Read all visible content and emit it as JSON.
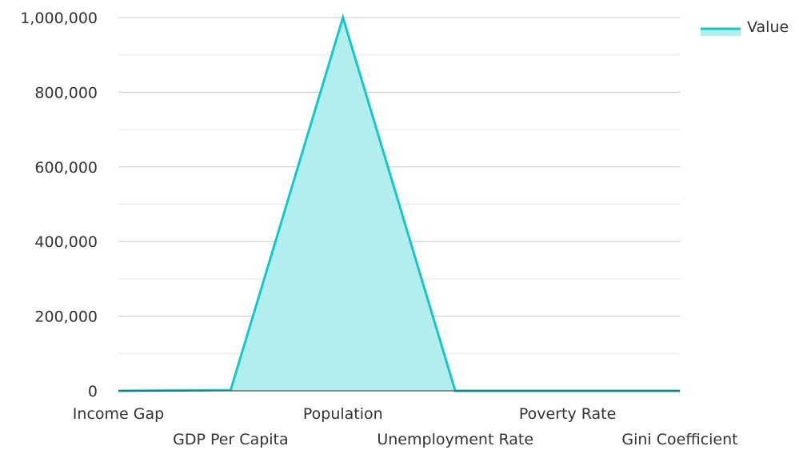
{
  "chart_data": {
    "type": "area",
    "categories": [
      "Income Gap",
      "GDP Per Capita",
      "Population",
      "Unemployment Rate",
      "Poverty Rate",
      "Gini Coefficient"
    ],
    "series": [
      {
        "name": "Value",
        "values": [
          0,
          2000,
          1000000,
          0,
          0,
          0
        ]
      }
    ],
    "ylim": [
      0,
      1000000
    ],
    "y_ticks": [
      "0",
      "200,000",
      "400,000",
      "600,000",
      "800,000",
      "1,000,000"
    ],
    "grid": true,
    "legend_position": "top-right",
    "colors": {
      "line": "#14c8c8",
      "fill": "#b2eeee",
      "grid": "#c8c8c8",
      "minor_grid": "#e6e6e6",
      "axis": "#333333"
    }
  }
}
